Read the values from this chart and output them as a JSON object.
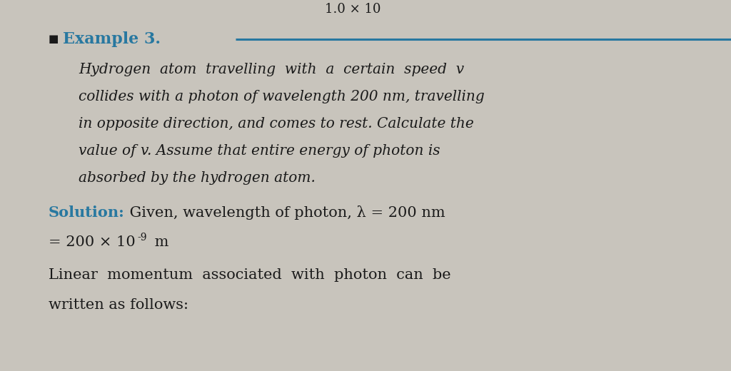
{
  "bg_color": "#c8c4bc",
  "line_color": "#2878a0",
  "heading_color": "#2878a0",
  "solution_color": "#2878a0",
  "text_color": "#1a1a1a",
  "bullet": "■",
  "heading": "Example 3.",
  "top_text": "1.0 × 10",
  "body_italic_lines": [
    "Hydrogen  atom  travelling  with  a  certain  speed  v",
    "collides with a photon of wavelength 200 nm, travelling",
    "in opposite direction, and comes to rest. Calculate the",
    "value of v. Assume that entire energy of photon is",
    "absorbed by the hydrogen atom."
  ],
  "solution_given": " Given, wavelength of photon, λ = 200 nm",
  "solution_eq": "= 200 × 10",
  "solution_exp": "-9",
  "solution_m": " m",
  "linear1": "Linear  momentum  associated  with  photon  can  be",
  "linear2": "written as follows:"
}
